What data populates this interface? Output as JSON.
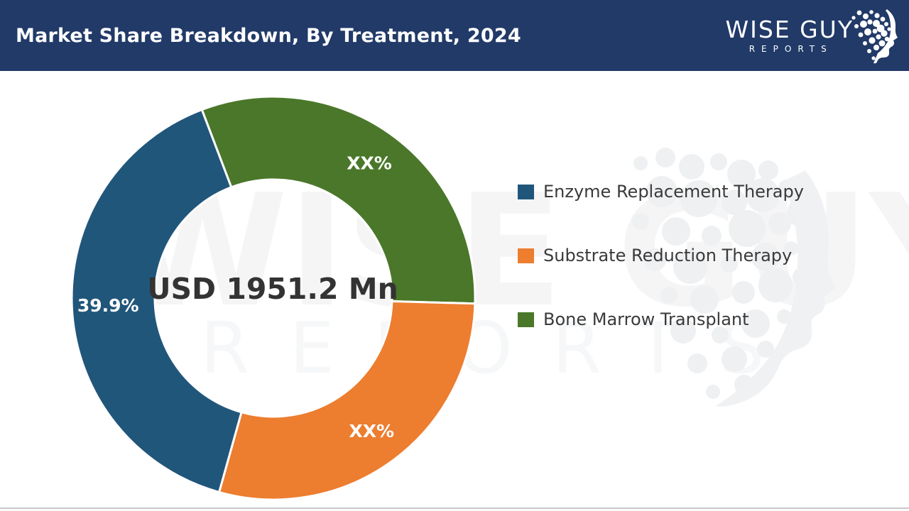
{
  "header": {
    "title": "Market Share Breakdown, By Treatment, 2024",
    "logo": {
      "wordmark": "WISE GUY",
      "subtext": "REPORTS"
    }
  },
  "watermark": {
    "wordmark": "WISE GUY",
    "subtext": "REPORTS"
  },
  "chart_data": {
    "type": "pie",
    "subtype": "donut",
    "title": "Market Share Breakdown, By Treatment, 2024",
    "center_label": "USD 1951.2 Mn",
    "segments": [
      {
        "label": "Enzyme Replacement Therapy",
        "value_pct": 39.9,
        "display": "39.9%",
        "color": "#21567B"
      },
      {
        "label": "Substrate Reduction Therapy",
        "value_pct": 28.9,
        "display": "XX%",
        "color": "#ED7D2F"
      },
      {
        "label": "Bone Marrow Transplant",
        "value_pct": 31.2,
        "display": "XX%",
        "color": "#4A7729"
      }
    ],
    "draw_order": [
      0,
      2,
      1
    ],
    "start_angle_deg": 195.6,
    "legend_position": "right",
    "label_position": "inside-ring"
  },
  "colors": {
    "header_bg": "#213A68",
    "title_text": "#FFFFFF",
    "center_text": "#333333",
    "legend_text": "#3A3A3A",
    "segment_label_text": "#FFFFFF",
    "bottom_line": "#C9C9C9"
  }
}
